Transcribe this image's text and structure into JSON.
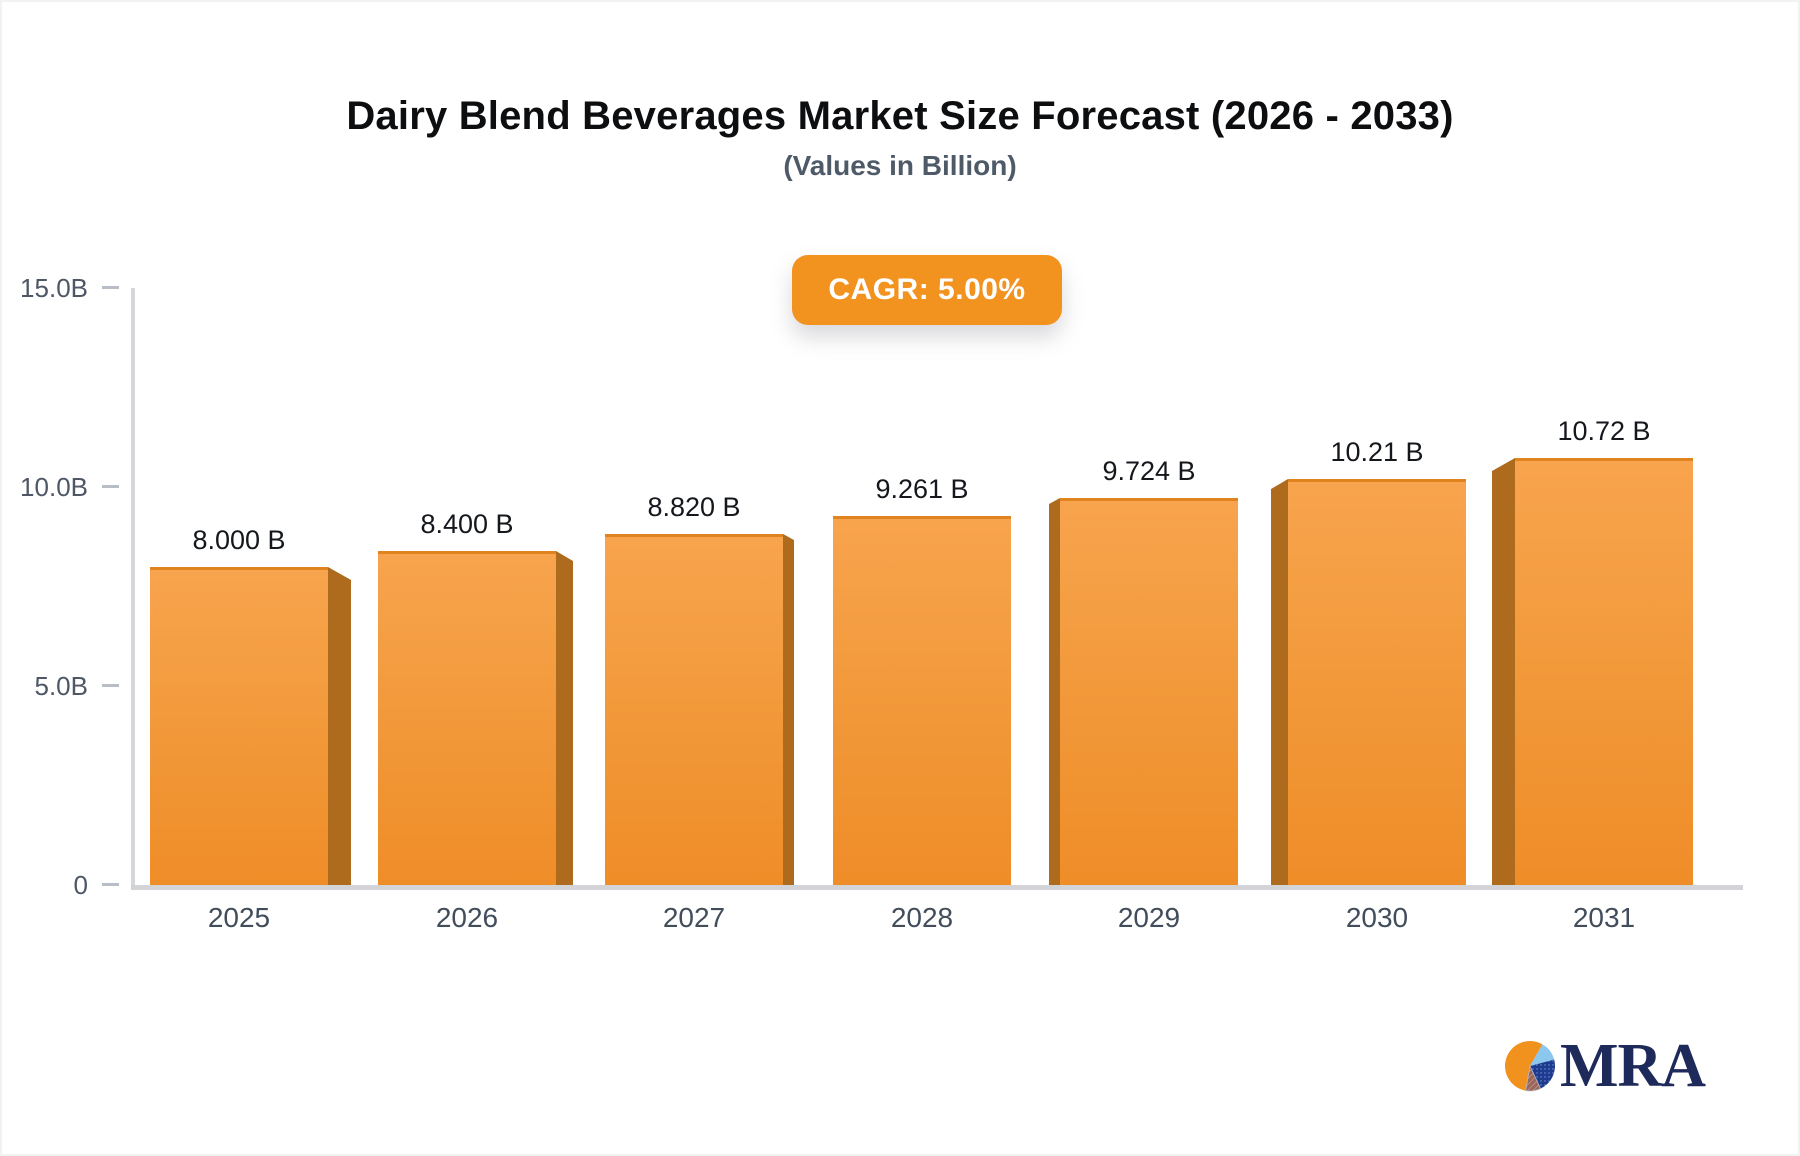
{
  "page": {
    "title": "Dairy Blend Beverages Market Size Forecast (2026 - 2033)",
    "subtitle": "(Values in Billion)",
    "cagr_badge_label": "CAGR: 5.00%",
    "logo_text": "MRA",
    "logo_icon": "pie-chart-logo-icon"
  },
  "colors": {
    "accent_orange": "#F2921F",
    "bar_gradient_top": "#F8A44E",
    "bar_gradient_bottom": "#EF8D28",
    "bar_side": "#AF6B1D",
    "axis_gray": "#d2d4d7",
    "tick_text": "#4d5765",
    "logo_navy": "#1E2A5A"
  },
  "chart_data": {
    "type": "bar",
    "title": "Dairy Blend Beverages Market Size Forecast (2026 - 2033)",
    "subtitle": "(Values in Billion)",
    "annotation": "CAGR: 5.00%",
    "categories": [
      "2025",
      "2026",
      "2027",
      "2028",
      "2029",
      "2030",
      "2031"
    ],
    "values": [
      8.0,
      8.4,
      8.82,
      9.261,
      9.724,
      10.21,
      10.72
    ],
    "value_labels": [
      "8.000 B",
      "8.400 B",
      "8.820 B",
      "9.261 B",
      "9.724 B",
      "10.21 B",
      "10.72 B"
    ],
    "unit": "Billion",
    "xlabel": "",
    "ylabel": "",
    "ylim": [
      0,
      15
    ],
    "y_ticks": [
      {
        "label": "15.0B",
        "value": 15
      },
      {
        "label": "10.0B",
        "value": 10
      },
      {
        "label": "5.0B",
        "value": 5
      },
      {
        "label": "0",
        "value": 0
      }
    ],
    "grid": false,
    "legend": false,
    "style": "3d-extruded-bars"
  }
}
